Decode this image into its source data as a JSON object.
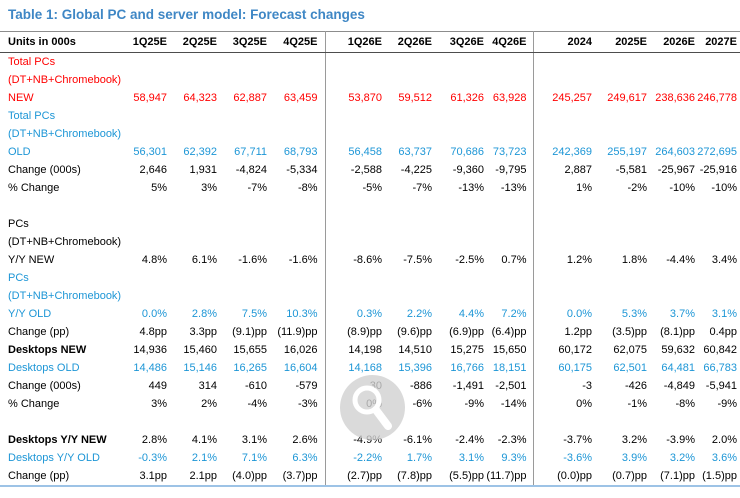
{
  "title": "Table 1: Global PC and server model: Forecast changes",
  "colors": {
    "title_blue": "#3F87C5",
    "new_red": "#FF0000",
    "old_blue": "#1D96D6",
    "header_rule": "#4d4d4d",
    "bottom_rule_blue": "#9DC3E6"
  },
  "watermark_icon": "magnifier",
  "table": {
    "header": [
      "Units in 000s",
      "1Q25E",
      "2Q25E",
      "3Q25E",
      "4Q25E",
      "1Q26E",
      "2Q26E",
      "3Q26E",
      "4Q26E",
      "2024",
      "2025E",
      "2026E",
      "2027E"
    ],
    "rows": [
      {
        "label": "Total PCs",
        "style": "new",
        "values": []
      },
      {
        "label": "(DT+NB+Chromebook)",
        "style": "new",
        "values": []
      },
      {
        "label": "NEW",
        "style": "new",
        "values": [
          "58,947",
          "64,323",
          "62,887",
          "63,459",
          "53,870",
          "59,512",
          "61,326",
          "63,928",
          "245,257",
          "249,617",
          "238,636",
          "246,778"
        ]
      },
      {
        "label": "Total PCs",
        "style": "old",
        "values": []
      },
      {
        "label": "(DT+NB+Chromebook)",
        "style": "old",
        "values": []
      },
      {
        "label": "OLD",
        "style": "old",
        "values": [
          "56,301",
          "62,392",
          "67,711",
          "68,793",
          "56,458",
          "63,737",
          "70,686",
          "73,723",
          "242,369",
          "255,197",
          "264,603",
          "272,695"
        ]
      },
      {
        "label": "Change (000s)",
        "style": "plain",
        "values": [
          "2,646",
          "1,931",
          "-4,824",
          "-5,334",
          "-2,588",
          "-4,225",
          "-9,360",
          "-9,795",
          "2,887",
          "-5,581",
          "-25,967",
          "-25,916"
        ]
      },
      {
        "label": "% Change",
        "style": "plain",
        "values": [
          "5%",
          "3%",
          "-7%",
          "-8%",
          "-5%",
          "-7%",
          "-13%",
          "-13%",
          "1%",
          "-2%",
          "-10%",
          "-10%"
        ]
      },
      {
        "label": "",
        "style": "spacer",
        "values": []
      },
      {
        "label": "PCs",
        "style": "bold",
        "values": []
      },
      {
        "label": "(DT+NB+Chromebook)",
        "style": "bold",
        "values": []
      },
      {
        "label": "Y/Y NEW",
        "style": "bold",
        "values": [
          "4.8%",
          "6.1%",
          "-1.6%",
          "-1.6%",
          "-8.6%",
          "-7.5%",
          "-2.5%",
          "0.7%",
          "1.2%",
          "1.8%",
          "-4.4%",
          "3.4%"
        ]
      },
      {
        "label": "PCs",
        "style": "old",
        "values": []
      },
      {
        "label": "(DT+NB+Chromebook)",
        "style": "old",
        "values": []
      },
      {
        "label": "Y/Y OLD",
        "style": "old",
        "values": [
          "0.0%",
          "2.8%",
          "7.5%",
          "10.3%",
          "0.3%",
          "2.2%",
          "4.4%",
          "7.2%",
          "0.0%",
          "5.3%",
          "3.7%",
          "3.1%"
        ]
      },
      {
        "label": "Change (pp)",
        "style": "plain",
        "values": [
          "4.8pp",
          "3.3pp",
          "(9.1)pp",
          "(11.9)pp",
          "(8.9)pp",
          "(9.6)pp",
          "(6.9)pp",
          "(6.4)pp",
          "1.2pp",
          "(3.5)pp",
          "(8.1)pp",
          "0.4pp"
        ]
      },
      {
        "label": "Desktops NEW",
        "style": "boldlabel",
        "values": [
          "14,936",
          "15,460",
          "15,655",
          "16,026",
          "14,198",
          "14,510",
          "15,275",
          "15,650",
          "60,172",
          "62,075",
          "59,632",
          "60,842"
        ]
      },
      {
        "label": "Desktops OLD",
        "style": "old",
        "values": [
          "14,486",
          "15,146",
          "16,265",
          "16,604",
          "14,168",
          "15,396",
          "16,766",
          "18,151",
          "60,175",
          "62,501",
          "64,481",
          "66,783"
        ]
      },
      {
        "label": "Change (000s)",
        "style": "plain",
        "values": [
          "449",
          "314",
          "-610",
          "-579",
          "30",
          "-886",
          "-1,491",
          "-2,501",
          "-3",
          "-426",
          "-4,849",
          "-5,941"
        ]
      },
      {
        "label": "% Change",
        "style": "plain",
        "values": [
          "3%",
          "2%",
          "-4%",
          "-3%",
          "0%",
          "-6%",
          "-9%",
          "-14%",
          "0%",
          "-1%",
          "-8%",
          "-9%"
        ]
      },
      {
        "label": "",
        "style": "spacer",
        "values": []
      },
      {
        "label": "Desktops Y/Y NEW",
        "style": "boldlabel",
        "values": [
          "2.8%",
          "4.1%",
          "3.1%",
          "2.6%",
          "-4.9%",
          "-6.1%",
          "-2.4%",
          "-2.3%",
          "-3.7%",
          "3.2%",
          "-3.9%",
          "2.0%"
        ]
      },
      {
        "label": "Desktops Y/Y OLD",
        "style": "old",
        "values": [
          "-0.3%",
          "2.1%",
          "7.1%",
          "6.3%",
          "-2.2%",
          "1.7%",
          "3.1%",
          "9.3%",
          "-3.6%",
          "3.9%",
          "3.2%",
          "3.6%"
        ]
      },
      {
        "label": "Change (pp)",
        "style": "plain",
        "values": [
          "3.1pp",
          "2.1pp",
          "(4.0)pp",
          "(3.7)pp",
          "(2.7)pp",
          "(7.8)pp",
          "(5.5)pp",
          "(11.7)pp",
          "(0.0)pp",
          "(0.7)pp",
          "(7.1)pp",
          "(1.5)pp"
        ]
      }
    ]
  }
}
